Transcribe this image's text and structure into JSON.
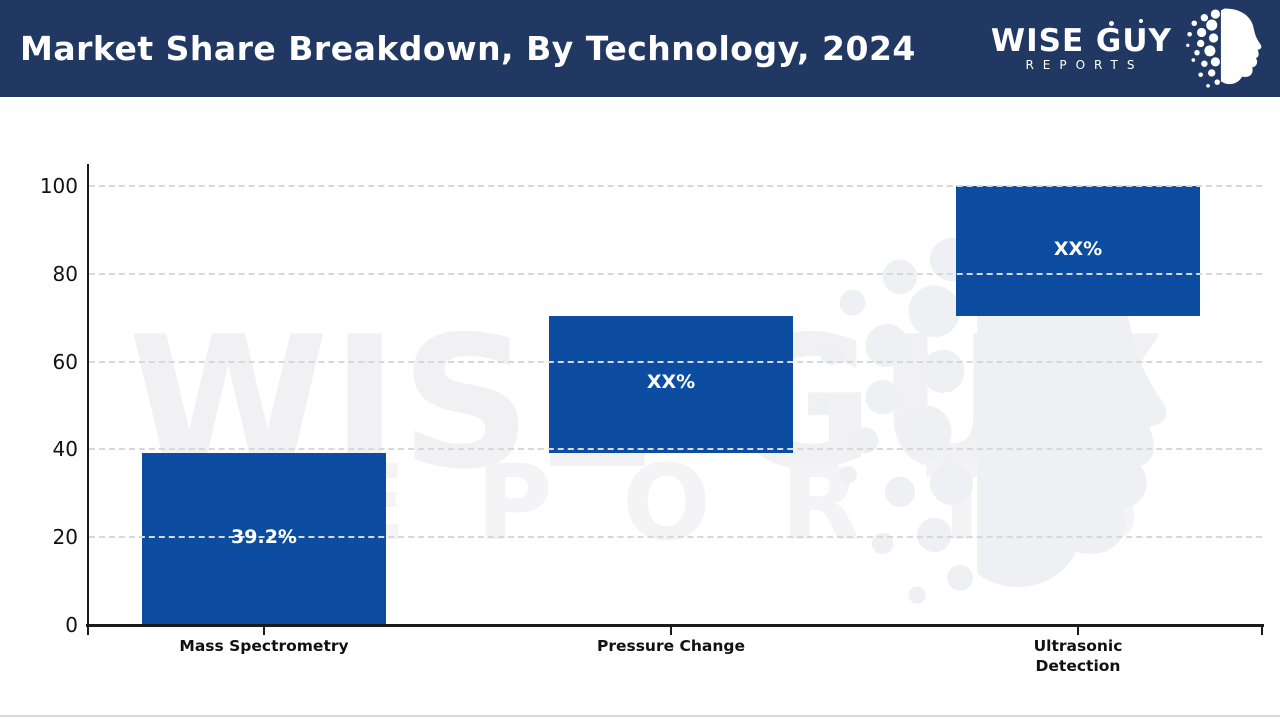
{
  "header": {
    "title": "Market Share Breakdown, By Technology, 2024",
    "bg_color": "#213863",
    "logo": {
      "line1": "WISE GUY",
      "line2": "REPORTS"
    }
  },
  "watermark": {
    "line1": "WISE GUY",
    "line2": "REPORTS"
  },
  "chart_data": {
    "type": "bar",
    "variant": "floating-waterfall",
    "title": "Market Share Breakdown, By Technology, 2024",
    "categories": [
      "Mass Spectrometry",
      "Pressure Change",
      "Ultrasonic\nDetection"
    ],
    "segments": [
      {
        "category": "Mass Spectrometry",
        "start": 0,
        "end": 39.2,
        "label": "39.2%"
      },
      {
        "category": "Pressure Change",
        "start": 39.2,
        "end": 70.5,
        "label": "XX%"
      },
      {
        "category": "Ultrasonic Detection",
        "start": 70.5,
        "end": 100,
        "label": "XX%"
      }
    ],
    "yticks": [
      0,
      20,
      40,
      60,
      80,
      100
    ],
    "ylim": [
      0,
      105
    ],
    "xlabel": "",
    "ylabel": "",
    "grid": "horizontal-dashed",
    "legend": "none",
    "bar_color": "#0c4da2",
    "bar_label_color": "#ffffff",
    "axis_color": "#1a1a1a",
    "grid_color": "#d8d8d8"
  },
  "colors": {
    "header_bg": "#213863",
    "watermark_text": "#f1f1f4",
    "watermark_head": "#eef0f3",
    "footer_line": "#d9d9d9"
  }
}
